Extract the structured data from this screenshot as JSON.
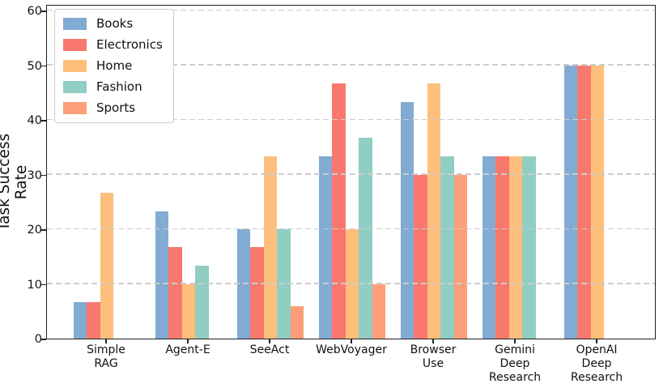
{
  "chart_data": {
    "type": "bar",
    "title": "",
    "xlabel": "",
    "ylabel": "Task Success Rate",
    "ylim": [
      0,
      61.2
    ],
    "yticks": [
      0,
      10,
      20,
      30,
      40,
      50,
      60
    ],
    "grid": "horizontal, dashed, light gray, drawn over bars",
    "legend_position": "upper left",
    "categories": [
      "Simple RAG",
      "Agent-E",
      "SeeAct",
      "WebVoyager",
      "Browser Use",
      "Gemini Deep Research",
      "OpenAI Deep Research"
    ],
    "category_tick_lines": [
      [
        "Simple",
        "RAG"
      ],
      [
        "Agent-E"
      ],
      [
        "SeeAct"
      ],
      [
        "WebVoyager"
      ],
      [
        "Browser",
        "Use"
      ],
      [
        "Gemini",
        "Deep",
        "Research"
      ],
      [
        "OpenAI",
        "Deep",
        "Research"
      ]
    ],
    "series": [
      {
        "name": "Books",
        "color": "#82ABD3",
        "values": [
          6.7,
          23.3,
          20.0,
          33.3,
          43.3,
          33.3,
          50.0
        ]
      },
      {
        "name": "Electronics",
        "color": "#F8786E",
        "values": [
          6.7,
          16.7,
          16.7,
          46.7,
          30.0,
          33.3,
          50.0
        ]
      },
      {
        "name": "Home",
        "color": "#FDBF7B",
        "values": [
          26.7,
          10.0,
          33.3,
          20.0,
          46.7,
          33.3,
          50.0
        ]
      },
      {
        "name": "Fashion",
        "color": "#90CEC3",
        "values": [
          0,
          13.3,
          20.0,
          36.7,
          33.3,
          33.3,
          0
        ]
      },
      {
        "name": "Sports",
        "color": "#FC9F79",
        "values": [
          0,
          0,
          5.9,
          10.0,
          30.0,
          0,
          0
        ]
      }
    ]
  },
  "colors": {
    "axis_frame": "#222222",
    "gridline": "#cdcdcd",
    "background": "#ffffff",
    "text": "#111111"
  }
}
